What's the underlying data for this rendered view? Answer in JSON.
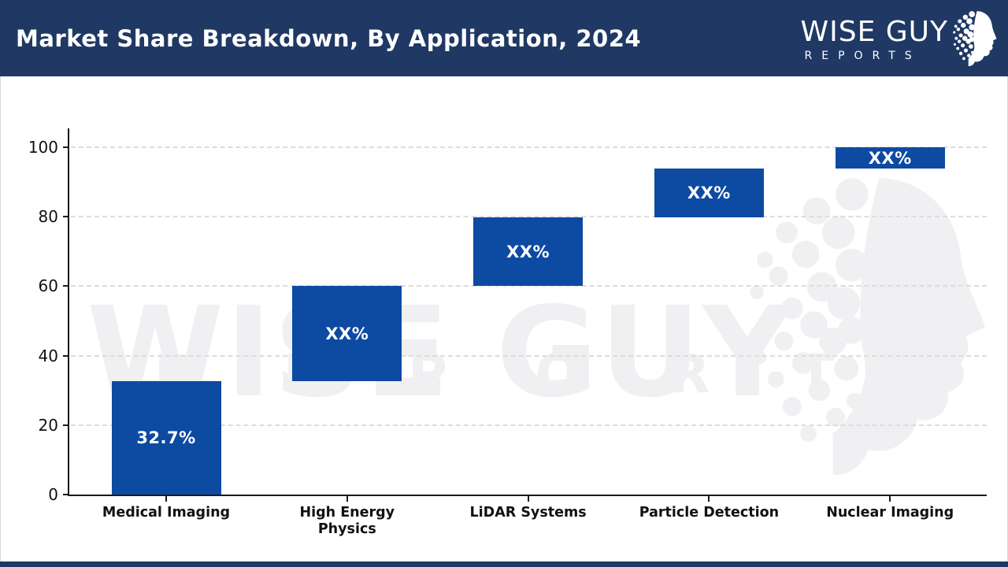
{
  "header": {
    "title": "Market Share Breakdown, By Application, 2024",
    "bg_color": "#1f3864",
    "logo": {
      "line1": "WISE GUY",
      "line2": "REPORTS"
    }
  },
  "watermark": {
    "line1": "WISE GUY",
    "line2": "R E P O R T S"
  },
  "chart_data": {
    "type": "bar",
    "subtype": "waterfall",
    "title": "Market Share Breakdown, By Application, 2024",
    "categories": [
      "Medical Imaging",
      "High Energy\nPhysics",
      "LiDAR Systems",
      "Particle Detection",
      "Nuclear Imaging"
    ],
    "segments": [
      {
        "label": "32.7%",
        "start": 0,
        "end": 32.7
      },
      {
        "label": "XX%",
        "start": 32.7,
        "end": 60
      },
      {
        "label": "XX%",
        "start": 60,
        "end": 79.8
      },
      {
        "label": "XX%",
        "start": 79.8,
        "end": 93.8
      },
      {
        "label": "XX%",
        "start": 93.8,
        "end": 100
      }
    ],
    "bar_color": "#0d4aa2",
    "label_color": "#ffffff",
    "xlabel": "",
    "ylabel": "",
    "ylim": [
      0,
      100
    ],
    "yticks": [
      0,
      20,
      40,
      60,
      80,
      100
    ],
    "grid": "horizontal dashed",
    "legend": "none"
  },
  "footer": {
    "bg_color": "#1f3864"
  }
}
